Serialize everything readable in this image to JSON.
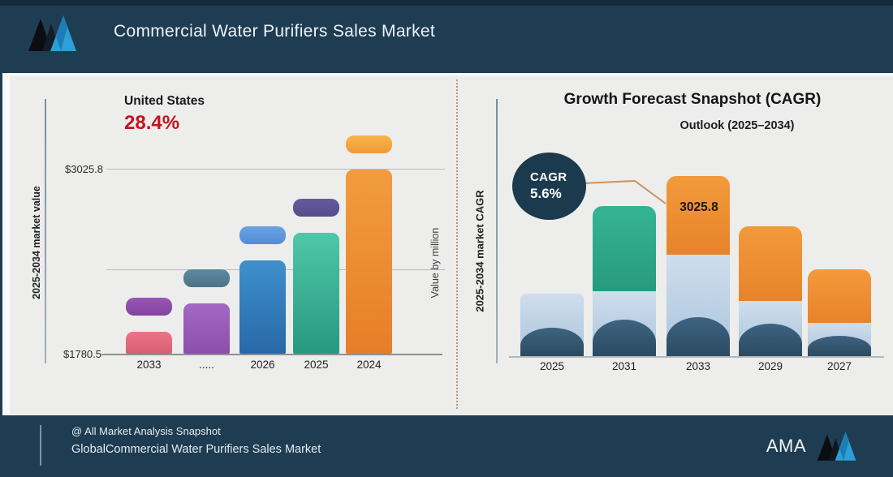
{
  "header": {
    "title": "Commercial Water Purifiers Sales Market",
    "logo": "ama-mountain-logo"
  },
  "footer": {
    "line1": "@ All Market Analysis Snapshot",
    "line2": "GlobalCommercial Water Purifiers Sales Market",
    "brand": "AMA",
    "logo": "ama-mountain-logo"
  },
  "colors": {
    "page_navy": "#1e3d53",
    "content_bg": "#ededeb",
    "accent_red": "#c3141f",
    "bubble_navy": "#1c3a4e",
    "connector_tan": "#cd8f62",
    "divider_dotted": "#b08968"
  },
  "chart_data": [
    {
      "type": "bar",
      "panel": "left",
      "title": "United States",
      "highlight_value": "28.4%",
      "ylabel": "2025-2034 market value",
      "ylabel_secondary": "Value by million",
      "y_axis": {
        "top_label": "$3025.8",
        "top_value": 3025.8,
        "bottom_label": "$1780.5",
        "bottom_value": 1780.5,
        "gridlines": 3
      },
      "categories": [
        "2033",
        ".....",
        "2026",
        "2025",
        "2024"
      ],
      "values": [
        1930,
        2120,
        2405,
        2590,
        3015
      ],
      "values_note": "estimated from bar heights against labeled axis range $1780.5–$3025.8; floating caps above each bar are decorative",
      "bar_colors": [
        [
          "#ec7489",
          "#d85f73"
        ],
        [
          "#a368c2",
          "#8b50ac"
        ],
        [
          "#3e90cd",
          "#2968a8"
        ],
        [
          "#4fc7a9",
          "#27997e"
        ],
        [
          "#f29c3f",
          "#e67e28"
        ]
      ],
      "cap_colors": [
        [
          "#9a56b6",
          "#8343a0"
        ],
        [
          "#5c8aa0",
          "#4f7287"
        ],
        [
          "#6aa4e4",
          "#548cd2"
        ],
        [
          "#645a9e",
          "#554b8c"
        ],
        [
          "#f8b44a",
          "#f09a35"
        ]
      ]
    },
    {
      "type": "stacked-bar",
      "panel": "right",
      "title": "Growth Forecast Snapshot (CAGR)",
      "subtitle": "Outlook (2025–2034)",
      "ylabel": "2025-2034 market CAGR",
      "badge": {
        "label": "CAGR",
        "value": "5.6%"
      },
      "data_label": {
        "text": "3025.8",
        "category": "2033"
      },
      "categories": [
        "2025",
        "2031",
        "2033",
        "2029",
        "2027"
      ],
      "series": [
        {
          "name": "base-navy",
          "values": [
            35,
            45,
            48,
            40,
            25
          ]
        },
        {
          "name": "mid-lightblue",
          "values": [
            42,
            35,
            77,
            28,
            16
          ]
        },
        {
          "name": "top-accent",
          "values": [
            0,
            105,
            97,
            92,
            66
          ]
        }
      ],
      "top_segment_style": [
        "none",
        "teal",
        "orange",
        "orange",
        "orange"
      ],
      "segment_colors": {
        "base": [
          "#3e6480",
          "#2b4a62"
        ],
        "mid": [
          "#cfdeed",
          "#a9c4dc"
        ],
        "teal": [
          "#35b493",
          "#279a7e"
        ],
        "orange": [
          "#f29a3a",
          "#e8832c"
        ]
      },
      "units": "relative bar-segment heights (px, estimated — no numeric axis shown)"
    }
  ]
}
